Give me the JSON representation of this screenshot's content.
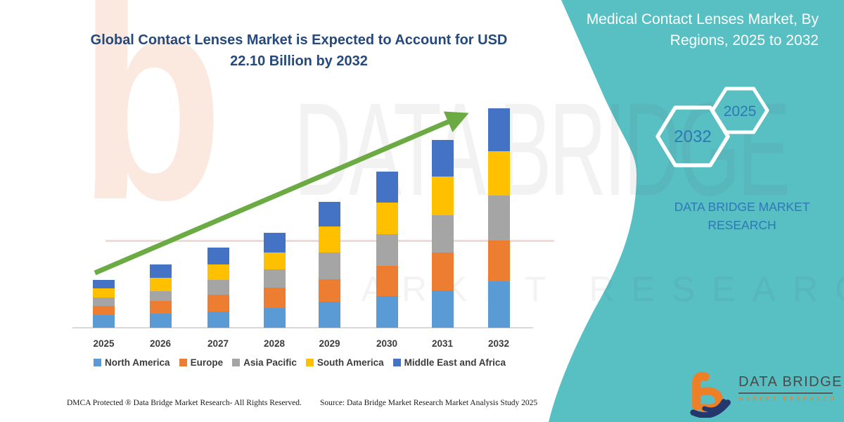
{
  "header": {
    "title_line1": "Global Contact Lenses Market is Expected to Account for USD",
    "title_line2": "22.10 Billion by 2032"
  },
  "right_panel": {
    "title_line1": "Medical Contact Lenses Market, By",
    "title_line2": "Regions, 2025 to 2032",
    "hexagons": [
      {
        "label": "2032"
      },
      {
        "label": "2025"
      }
    ],
    "brand_line1": "DATA BRIDGE MARKET",
    "brand_line2": "RESEARCH"
  },
  "chart_data": {
    "type": "bar",
    "stacked": true,
    "title": "Global Contact Lenses Market is Expected to Account for USD 22.10 Billion by 2032",
    "unit": "USD Billion",
    "categories": [
      "2025",
      "2026",
      "2027",
      "2028",
      "2029",
      "2030",
      "2031",
      "2032"
    ],
    "series": [
      {
        "name": "North America",
        "color": "#5B9BD5",
        "values": [
          1.25,
          1.4,
          1.65,
          2.0,
          2.6,
          3.2,
          3.75,
          4.65
        ]
      },
      {
        "name": "Europe",
        "color": "#ED7D31",
        "values": [
          0.95,
          1.3,
          1.7,
          2.0,
          2.3,
          3.05,
          3.8,
          4.1
        ]
      },
      {
        "name": "Asia Pacific",
        "color": "#A5A5A5",
        "values": [
          0.85,
          1.0,
          1.5,
          1.9,
          2.7,
          3.15,
          3.75,
          4.55
        ]
      },
      {
        "name": "South America",
        "color": "#FFC000",
        "values": [
          0.95,
          1.35,
          1.5,
          1.65,
          2.6,
          3.2,
          3.9,
          4.45
        ]
      },
      {
        "name": "Middle East and Africa",
        "color": "#4472C4",
        "values": [
          0.85,
          1.3,
          1.7,
          2.0,
          2.45,
          3.15,
          3.7,
          4.35
        ]
      }
    ],
    "totals": [
      4.85,
      6.35,
      8.05,
      9.55,
      12.65,
      15.75,
      18.9,
      22.1
    ],
    "final_year_total_label": "22.10 Billion",
    "trend_arrow": true,
    "legend_position": "bottom",
    "gridlines": false,
    "ylim": [
      0,
      22.1
    ]
  },
  "footer": {
    "dmca_text": "DMCA Protected ® Data Bridge Market Research-  All Rights Reserved.",
    "source_text": "Source: Data Bridge Market Research  Market Analysis Study 2025"
  },
  "logo": {
    "name": "DATA BRIDGE",
    "subtitle": "MARKET RESEARCH"
  },
  "watermark": {
    "letter": "b",
    "big_text": "DATA BRIDGE",
    "sub_text": "MARKET RESEARCH"
  },
  "colors": {
    "teal_panel": "#58bfc3",
    "title_blue": "#25497b",
    "panel_text_blue": "#2e78b5",
    "arrow_green": "#6cab44",
    "logo_orange": "#ee7f27",
    "logo_navy": "#24386e",
    "axis_line": "#d9d9d9"
  }
}
